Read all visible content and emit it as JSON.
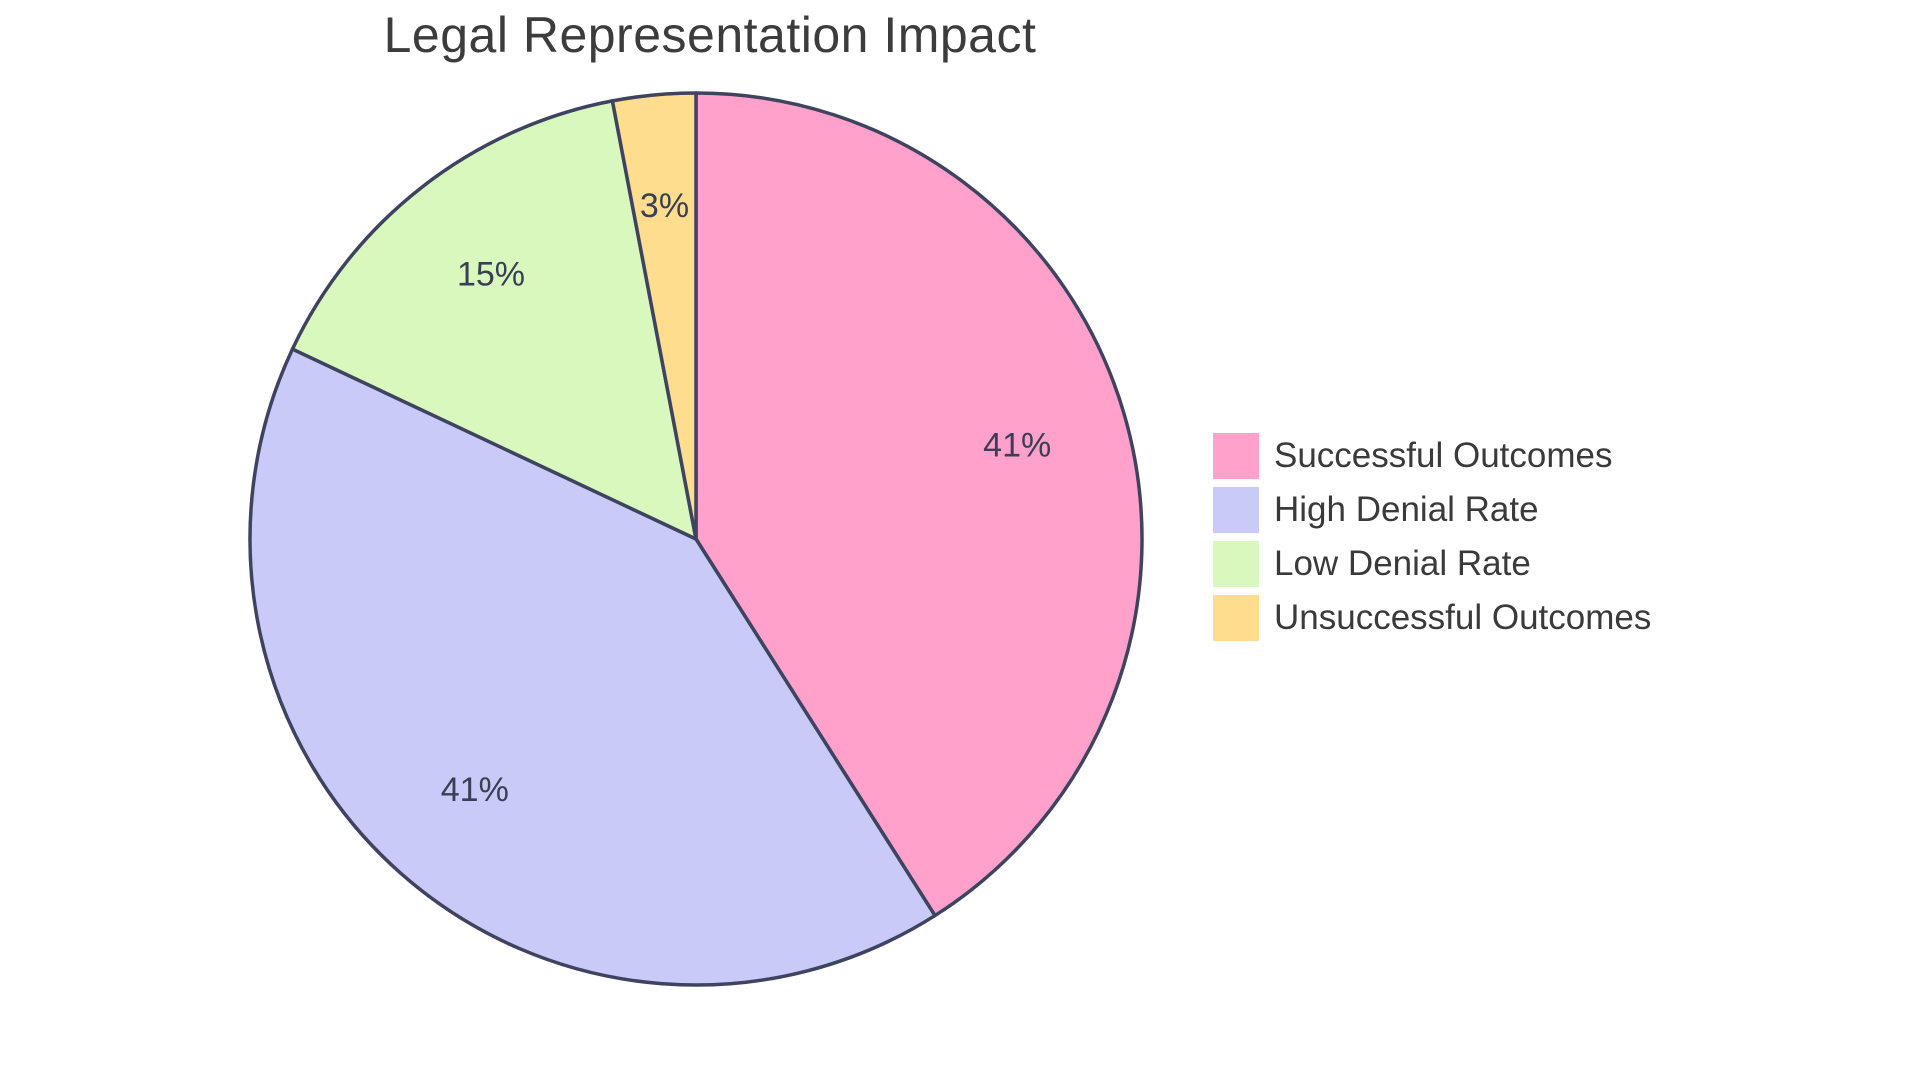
{
  "chart_data": {
    "type": "pie",
    "title": "Legal Representation Impact",
    "slices": [
      {
        "label": "Successful Outcomes",
        "value": 41,
        "pct_label": "41%",
        "color": "#FFA1CB"
      },
      {
        "label": "High Denial Rate",
        "value": 41,
        "pct_label": "41%",
        "color": "#C9CAF7"
      },
      {
        "label": "Low Denial Rate",
        "value": 15,
        "pct_label": "15%",
        "color": "#D8F8BE"
      },
      {
        "label": "Unsuccessful Outcomes",
        "value": 3,
        "pct_label": "3%",
        "color": "#FFDD8E"
      }
    ],
    "start_angle_deg": 0,
    "direction": "clockwise",
    "stroke_color": "#3E4460",
    "slice_label_color": "#3A3F55",
    "title_color": "#3C3C3C",
    "legend_position": "right",
    "background": "#FFFFFF"
  }
}
